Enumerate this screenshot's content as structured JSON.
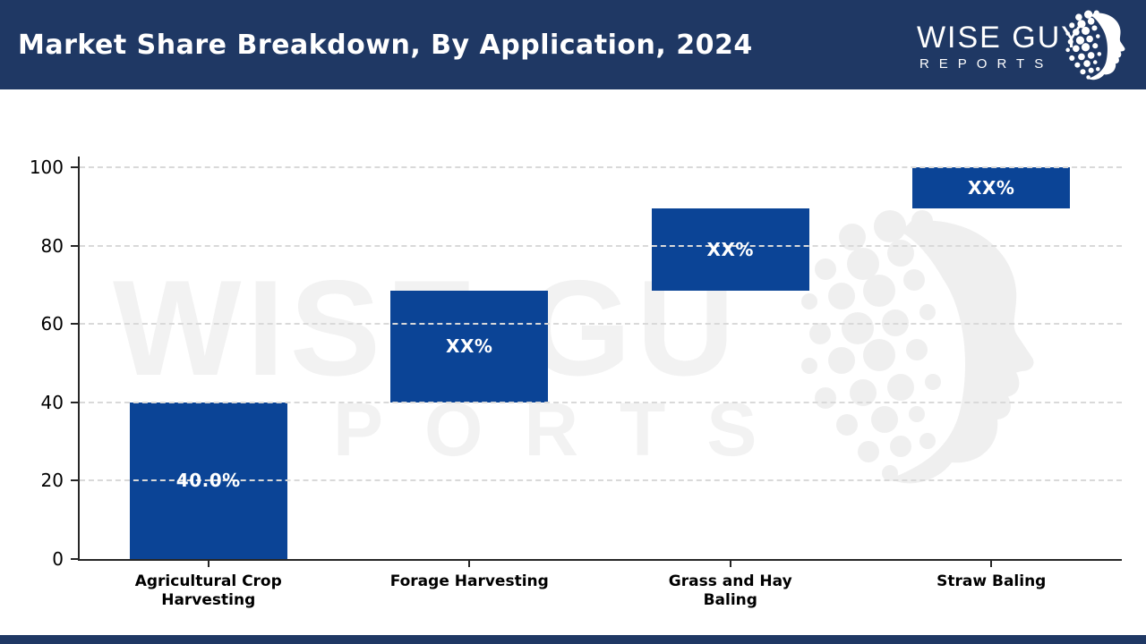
{
  "header": {
    "title": "Market Share Breakdown, By Application, 2024",
    "bg_color": "#1f3864",
    "logo": {
      "line1": "WISE GUY",
      "line2": "REPORTS",
      "face_icon": "wiseguy-face-icon"
    }
  },
  "watermark": {
    "line1": "WISE GU",
    "line2": "PORTS",
    "face_icon": "wiseguy-face-watermark-icon"
  },
  "footer": {
    "bg_color": "#1f3864"
  },
  "chart_data": {
    "type": "bar",
    "subtype": "waterfall",
    "title": "Market Share Breakdown, By Application, 2024",
    "categories": [
      "Agricultural Crop\nHarvesting",
      "Forage Harvesting",
      "Grass and Hay\nBaling",
      "Straw Baling"
    ],
    "bars": [
      {
        "category": "Agricultural Crop Harvesting",
        "start": 0,
        "end": 40,
        "segment": 40,
        "label": "40.0%"
      },
      {
        "category": "Forage Harvesting",
        "start": 40,
        "end": 68.6,
        "segment": 28.6,
        "label": "XX%"
      },
      {
        "category": "Grass and Hay Baling",
        "start": 68.6,
        "end": 89.5,
        "segment": 20.9,
        "label": "XX%"
      },
      {
        "category": "Straw Baling",
        "start": 89.5,
        "end": 100,
        "segment": 10.5,
        "label": "XX%"
      }
    ],
    "yticks": [
      0,
      20,
      40,
      60,
      80,
      100
    ],
    "ylim": [
      0,
      105
    ],
    "xlabel": "",
    "ylabel": "",
    "grid": true,
    "grid_style": "dashed",
    "grid_over_bars": true,
    "legend": false,
    "bar_color": "#0b4496",
    "axis_color": "#262626",
    "grid_color": "#d9d9d9"
  }
}
